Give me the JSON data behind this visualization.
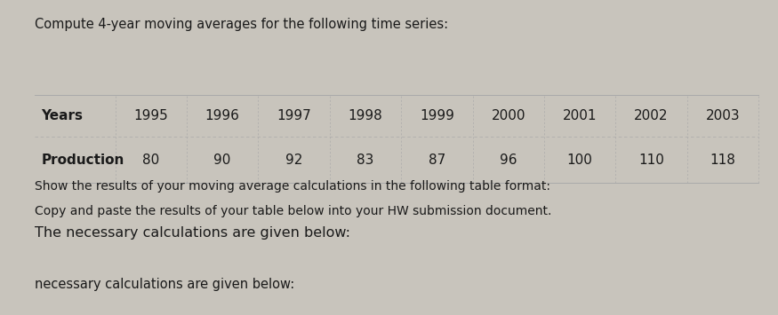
{
  "title": "Compute 4-year moving averages for the following time series:",
  "years_label": "Years",
  "production_label": "Production",
  "years": [
    "1995",
    "1996",
    "1997",
    "1998",
    "1999",
    "2000",
    "2001",
    "2002",
    "2003"
  ],
  "production": [
    "80",
    "90",
    "92",
    "83",
    "87",
    "96",
    "100",
    "110",
    "118"
  ],
  "line1": "Show the results of your moving average calculations in the following table format:",
  "line2": "Copy and paste the results of your table below into your HW submission document.",
  "line3": "The necessary calculations are given below:",
  "line4": "necessary calculations are given below:",
  "bg_color": "#c8c4bc",
  "text_color": "#1a1a1a",
  "table_line_color": "#aaaaaa",
  "title_fontsize": 10.5,
  "table_fontsize": 11,
  "body_fontsize": 10,
  "line3_fontsize": 11.5,
  "line4_fontsize": 10.5
}
